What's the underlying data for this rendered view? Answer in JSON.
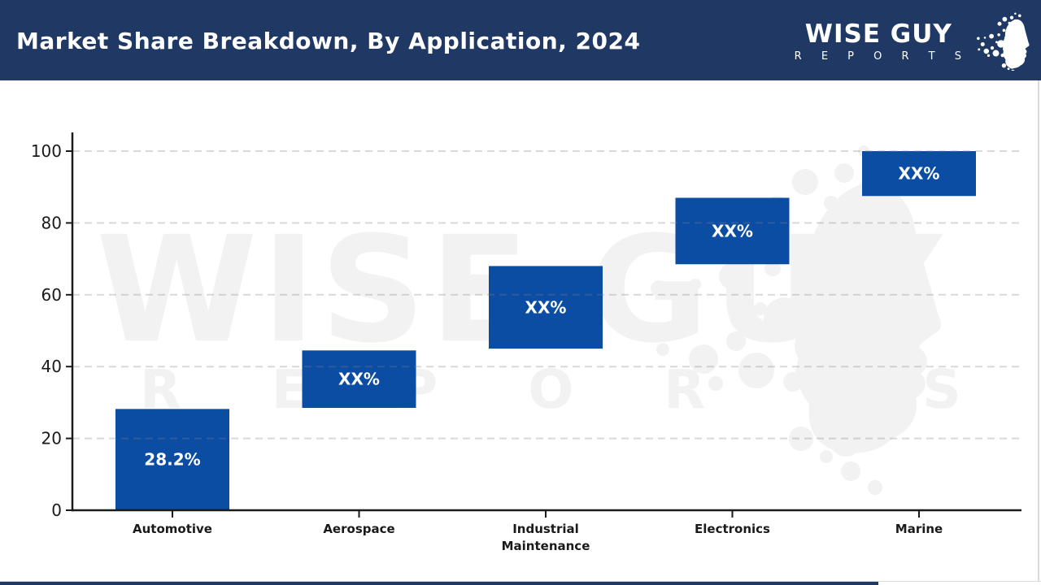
{
  "page": {
    "colors": {
      "navy": "#1F3864",
      "background": "#FFFFFF",
      "hairline": "#D9D9D9",
      "watermark": "#F2F2F2"
    }
  },
  "header": {
    "title": "Market Share Breakdown, By Application, 2024",
    "logo": {
      "line1": "WISE GUY",
      "line2": "R E P O R T S",
      "icon": "dotted-head-profile"
    }
  },
  "watermark": {
    "line1": "WISE GUY",
    "line2": "R E P O R T S"
  },
  "chart_data": {
    "type": "bar",
    "variant": "waterfall",
    "title": "Market Share Breakdown, By Application, 2024",
    "categories": [
      "Automotive",
      "Aerospace",
      "Industrial Maintenance",
      "Electronics",
      "Marine"
    ],
    "segments": [
      {
        "category": "Automotive",
        "start": 0,
        "end": 28.2,
        "label": "28.2%"
      },
      {
        "category": "Aerospace",
        "start": 28.5,
        "end": 44.5,
        "label": "XX%"
      },
      {
        "category": "Industrial Maintenance",
        "start": 45,
        "end": 68,
        "label": "XX%"
      },
      {
        "category": "Electronics",
        "start": 68.5,
        "end": 87,
        "label": "XX%"
      },
      {
        "category": "Marine",
        "start": 87.5,
        "end": 100,
        "label": "XX%"
      }
    ],
    "xlabel": "",
    "ylabel": "",
    "ylim": [
      0,
      100
    ],
    "yticks": [
      0,
      20,
      40,
      60,
      80,
      100
    ],
    "grid": {
      "axis": "y",
      "style": "dashed",
      "over_bars": true
    },
    "legend": "none",
    "colors": {
      "bar": "#0B4DA2",
      "bar_label": "#FFFFFF",
      "axis": "#1A1A1A",
      "tick_label": "#1A1A1A",
      "grid": "#808080"
    }
  }
}
